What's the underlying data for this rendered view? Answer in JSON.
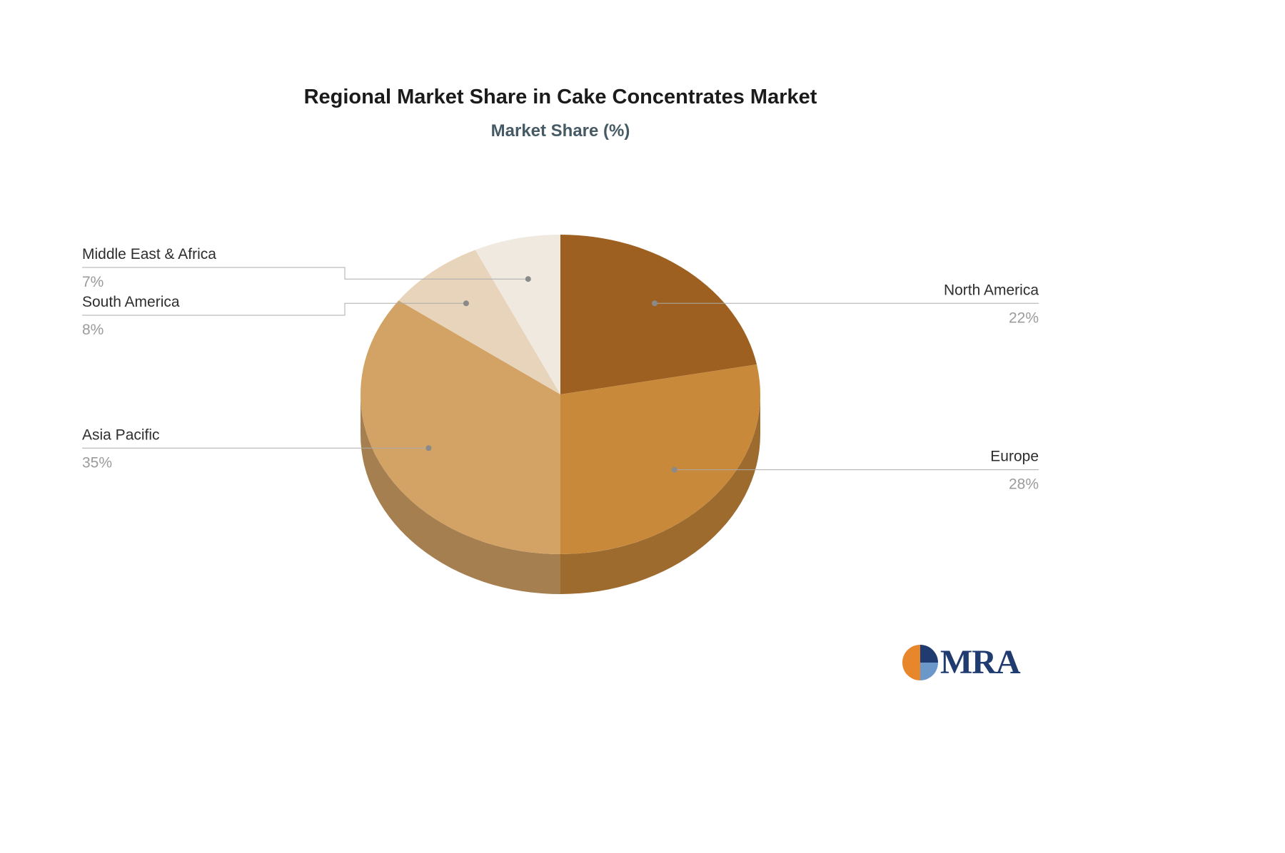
{
  "chart_data": {
    "type": "pie",
    "title": "Regional Market Share in Cake Concentrates Market",
    "subtitle": "Market Share (%)",
    "direction": "clockwise",
    "start_angle_deg": -90,
    "effect_3d": true,
    "slices": [
      {
        "label": "North America",
        "value": 22,
        "percent_label": "22%",
        "color": "#9D6020",
        "label_side": "right"
      },
      {
        "label": "Europe",
        "value": 28,
        "percent_label": "28%",
        "color": "#C9893B",
        "label_side": "right"
      },
      {
        "label": "Asia Pacific",
        "value": 35,
        "percent_label": "35%",
        "color": "#D3A366",
        "label_side": "left"
      },
      {
        "label": "South America",
        "value": 8,
        "percent_label": "8%",
        "color": "#E7D4BA",
        "label_side": "left"
      },
      {
        "label": "Middle East & Africa",
        "value": 7,
        "percent_label": "7%",
        "color": "#F0E9E0",
        "label_side": "left"
      }
    ],
    "labels_style": {
      "name_color": "#2E2E2E",
      "value_color": "#9B9B9B",
      "line_color": "#ABABAB",
      "dot_color": "#8A8A8A",
      "value_format": "{value}%"
    }
  },
  "logo": {
    "text": "MRA",
    "text_color": "#1F3B70",
    "mark_colors": {
      "left": "#E8862C",
      "top_right": "#1F3B70",
      "bottom_right": "#6C97C9"
    }
  }
}
